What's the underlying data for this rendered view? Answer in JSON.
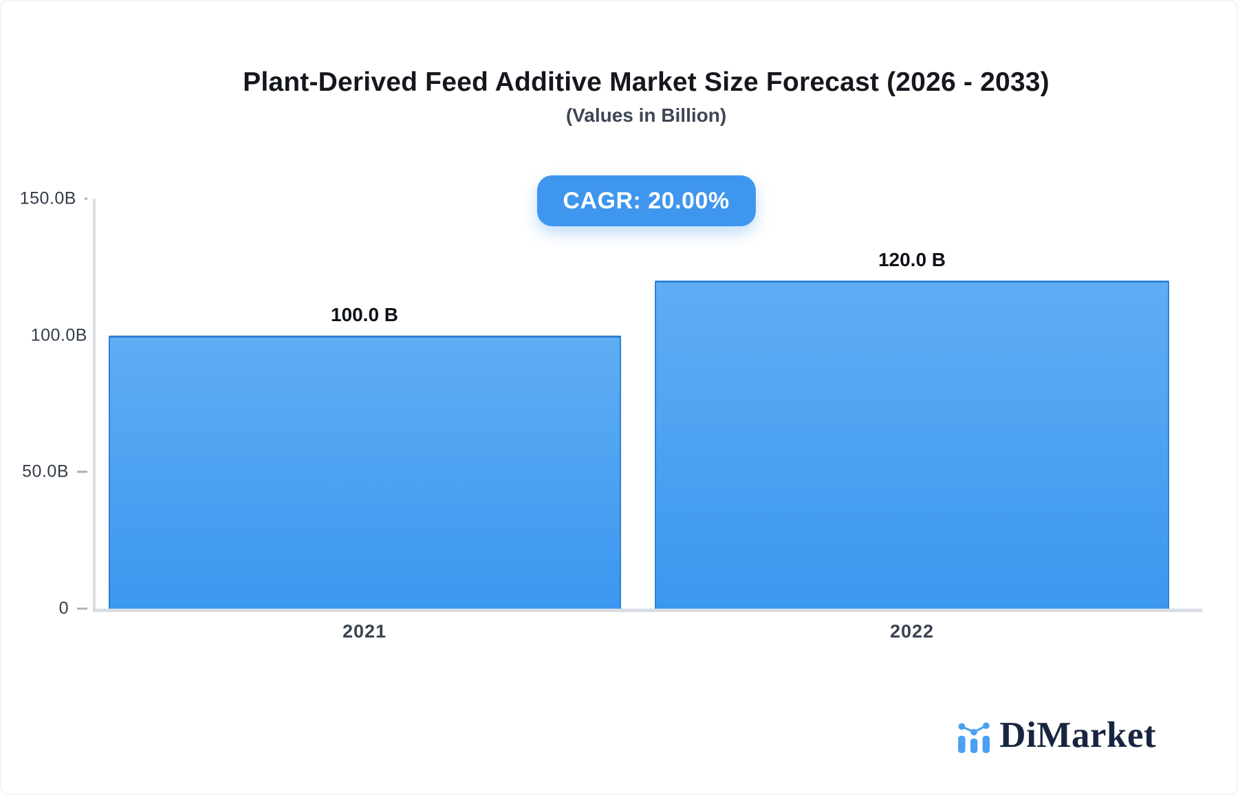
{
  "header": {
    "cagr_badge": "CAGR: 20.00%"
  },
  "chart_data": {
    "type": "bar",
    "title": "Plant-Derived Feed Additive Market Size Forecast (2026 - 2033)",
    "subtitle": "(Values in Billion)",
    "categories": [
      "2021",
      "2022"
    ],
    "values": [
      100.0,
      120.0
    ],
    "value_labels": [
      "100.0 B",
      "120.0 B"
    ],
    "cagr_percent": "20.00%",
    "xlabel": "",
    "ylabel": "",
    "ylim": [
      0,
      150
    ],
    "yticks": [
      {
        "label": "150.0B",
        "value": 150,
        "tick": "dot"
      },
      {
        "label": "100.0B",
        "value": 100,
        "tick": "none"
      },
      {
        "label": "50.0B",
        "value": 50,
        "tick": "dash"
      },
      {
        "label": "0",
        "value": 0,
        "tick": "dash"
      }
    ],
    "legend": "none",
    "grid": "off",
    "bar_color_top": "#5fadf3",
    "bar_color_bottom": "#3b97f0",
    "bar_border_color": "#2e7fd2"
  },
  "colors": {
    "badge_bg": "#3e96ee",
    "badge_text": "#ffffff",
    "axis_line": "#d9dde3"
  },
  "branding": {
    "logo_text": "DiMarket",
    "logo_icon": "bar-line-chart-icon",
    "logo_icon_color": "#4aa1f3",
    "logo_text_color": "#172540"
  }
}
